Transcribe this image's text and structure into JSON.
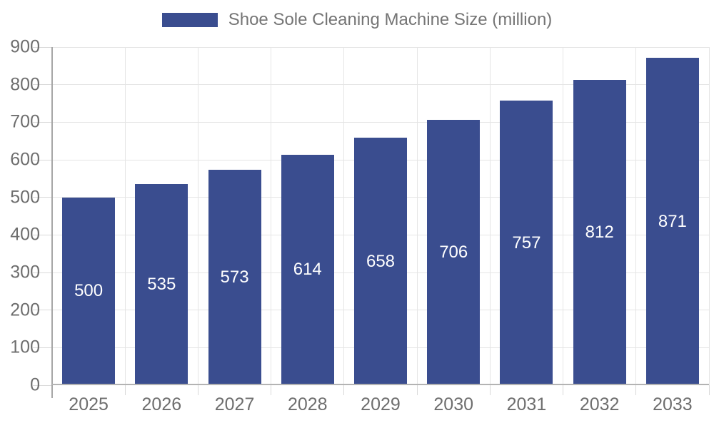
{
  "legend": {
    "label": "Shoe Sole Cleaning Machine Size (million)"
  },
  "colors": {
    "bar": "#3A4D8F",
    "bar_label": "#ffffff",
    "grid": "#e5e5e5",
    "tick": "#d9d9d9",
    "y_axis_line": "#a6a6a6",
    "x_axis_line": "#b3b3b3",
    "axis_text": "#6e6e6e",
    "legend_text": "#757575"
  },
  "chart_data": {
    "type": "bar",
    "title": "",
    "legend_entries": [
      "Shoe Sole Cleaning Machine Size (million)"
    ],
    "legend_position": "top",
    "categories": [
      "2025",
      "2026",
      "2027",
      "2028",
      "2029",
      "2030",
      "2031",
      "2032",
      "2033"
    ],
    "values": [
      500,
      535,
      573,
      614,
      658,
      706,
      757,
      812,
      871
    ],
    "bar_value_labels": [
      "500",
      "535",
      "573",
      "614",
      "658",
      "706",
      "757",
      "812",
      "871"
    ],
    "xlabel": "",
    "ylabel": "",
    "ylim": [
      0,
      900
    ],
    "ytick_step": 100,
    "yticks": [
      0,
      100,
      200,
      300,
      400,
      500,
      600,
      700,
      800,
      900
    ],
    "grid": true,
    "bar_labels_visible": true,
    "bar_label_position": "center-of-bar"
  }
}
